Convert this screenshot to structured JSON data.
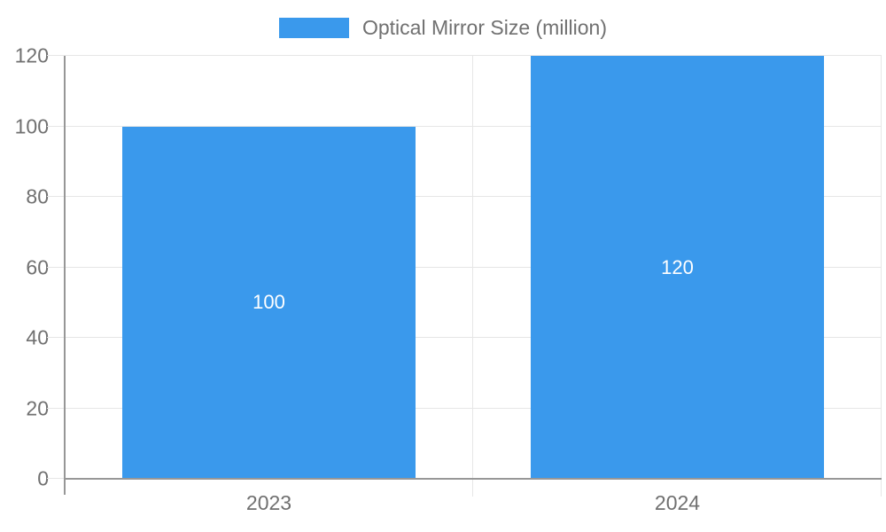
{
  "colors": {
    "bar": "#3A99EC",
    "grid": "#E6E6E6",
    "axis": "#979797",
    "label": "#707070",
    "data_label": "#FFFFFF",
    "background": "#FFFFFF"
  },
  "chart_data": {
    "type": "bar",
    "title": "",
    "categories": [
      "2023",
      "2024"
    ],
    "series": [
      {
        "name": "Optical Mirror Size (million)",
        "values": [
          100,
          120
        ]
      }
    ],
    "data_labels": [
      "100",
      "120"
    ],
    "xlabel": "",
    "ylabel": "",
    "y_ticks": [
      0,
      20,
      40,
      60,
      80,
      100,
      120
    ],
    "ylim": [
      0,
      120
    ],
    "grid": true,
    "legend_position": "top-center",
    "bar_width_fraction_of_category": 0.718
  }
}
